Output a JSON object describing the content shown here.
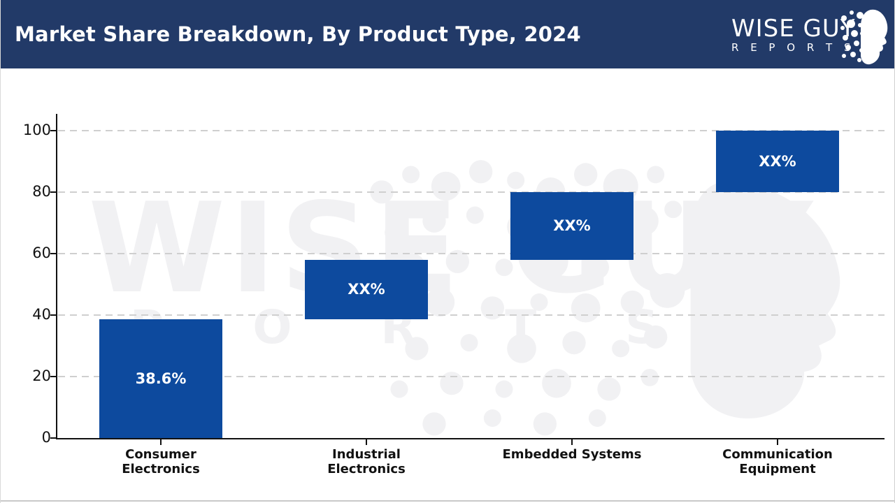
{
  "header": {
    "title": "Market Share Breakdown, By Product Type, 2024",
    "bg_color": "#223a68",
    "logo": {
      "wordmark": "WISE GUY",
      "subtitle": "R E P O R T S"
    }
  },
  "watermark": {
    "wordmark": "WISE GUY",
    "subtitle": "P O R T S",
    "color": "#f1f1f3"
  },
  "chart_data": {
    "type": "bar",
    "subtype": "waterfall",
    "title": "Market Share Breakdown, By Product Type, 2024",
    "categories": [
      [
        "Consumer",
        "Electronics"
      ],
      [
        "Industrial",
        "Electronics"
      ],
      [
        "Embedded Systems"
      ],
      [
        "Communication",
        "Equipment"
      ]
    ],
    "bars": [
      {
        "category": "Consumer Electronics",
        "start": 0,
        "end": 38.6,
        "label": "38.6%"
      },
      {
        "category": "Industrial Electronics",
        "start": 38.6,
        "end": 58,
        "label": "XX%"
      },
      {
        "category": "Embedded Systems",
        "start": 58,
        "end": 80,
        "label": "XX%"
      },
      {
        "category": "Communication Equipment",
        "start": 80,
        "end": 100,
        "label": "XX%"
      }
    ],
    "yticks": [
      0,
      20,
      40,
      60,
      80,
      100
    ],
    "ylim": [
      0,
      105.5
    ],
    "xlabel": "",
    "ylabel": "",
    "legend": "none",
    "grid": "horizontal-dashed",
    "bar_color": "#0d4a9e",
    "bar_label_color": "#ffffff",
    "axis_color": "#111111",
    "grid_color": "#cfcfcf"
  }
}
